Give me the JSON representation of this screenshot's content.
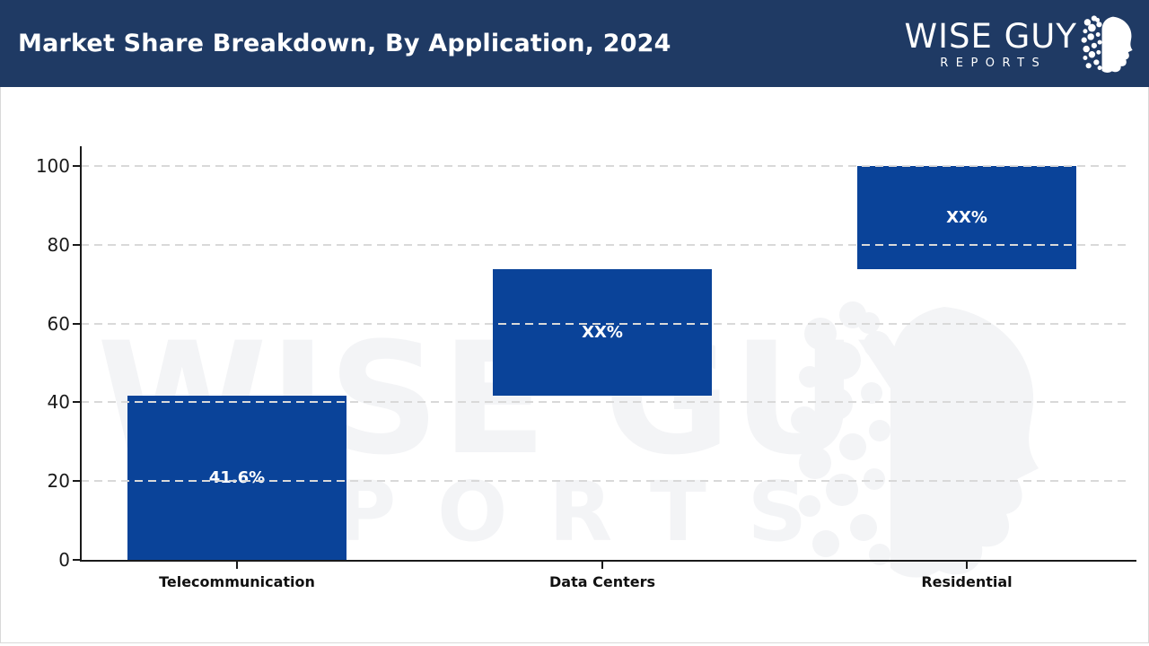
{
  "header": {
    "title": "Market Share Breakdown, By Application, 2024",
    "bg_color": "#1f3a64",
    "logo": {
      "primary": "WISE GUY",
      "secondary": "REPORTS"
    }
  },
  "watermark": {
    "line1": "WISE GUY",
    "line2": "REPORTS"
  },
  "chart_data": {
    "type": "bar",
    "variant": "stepped-waterfall",
    "title": "Market Share Breakdown, By Application, 2024",
    "categories": [
      "Telecommunication",
      "Data Centers",
      "Residential"
    ],
    "labels": [
      "41.6%",
      "XX%",
      "XX%"
    ],
    "segments": [
      {
        "category": "Telecommunication",
        "from": 0,
        "to": 41.6,
        "label": "41.6%"
      },
      {
        "category": "Data Centers",
        "from": 41.6,
        "to": 73.9,
        "label": "XX%"
      },
      {
        "category": "Residential",
        "from": 73.9,
        "to": 100,
        "label": "XX%"
      }
    ],
    "xlabel": "",
    "ylabel": "",
    "ylim": [
      0,
      100
    ],
    "yticks": [
      0,
      20,
      40,
      60,
      80,
      100
    ],
    "grid": "horizontal-dashed",
    "grid_over_bars": true,
    "legend": "none",
    "bar_color": "#0a4399",
    "bar_label_color": "#ffffff",
    "axis_color": "#1a1a1a",
    "grid_color": "#d9d9d9",
    "watermark_color": "#f3f4f6"
  }
}
